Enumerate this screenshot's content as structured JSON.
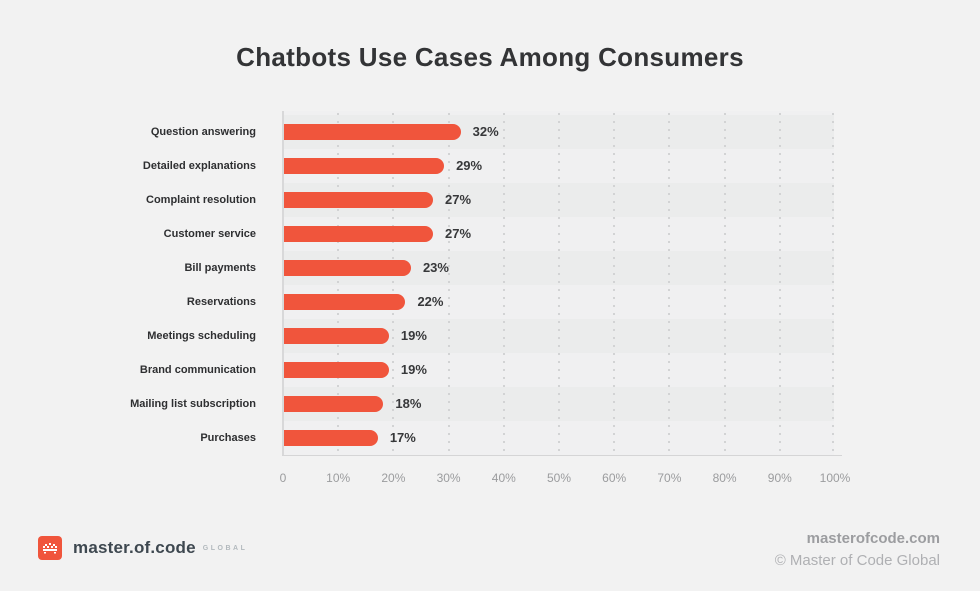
{
  "title": "Chatbots Use Cases Among Consumers",
  "chart_data": {
    "type": "bar",
    "orientation": "horizontal",
    "title": "Chatbots Use Cases Among Consumers",
    "categories": [
      "Question answering",
      "Detailed explanations",
      "Complaint resolution",
      "Customer service",
      "Bill payments",
      "Reservations",
      "Meetings scheduling",
      "Brand communication",
      "Mailing list subscription",
      "Purchases"
    ],
    "values": [
      32,
      29,
      27,
      27,
      23,
      22,
      19,
      19,
      18,
      17
    ],
    "value_labels": [
      "32%",
      "29%",
      "27%",
      "27%",
      "23%",
      "22%",
      "19%",
      "19%",
      "18%",
      "17%"
    ],
    "x_ticks": [
      "0",
      "10%",
      "20%",
      "30%",
      "40%",
      "50%",
      "60%",
      "70%",
      "80%",
      "90%",
      "100%"
    ],
    "xlim": [
      0,
      100
    ],
    "xlabel": "",
    "ylabel": "",
    "grid": "vertical-dotted",
    "legend": "none",
    "bar_color": "#F0553C",
    "plot_background": "#EBECEC",
    "page_background": "#F2F2F2"
  },
  "footer": {
    "brand_name": "master.of.code",
    "brand_suffix": "GLOBAL",
    "website": "masterofcode.com",
    "copyright": "© Master of Code Global"
  }
}
